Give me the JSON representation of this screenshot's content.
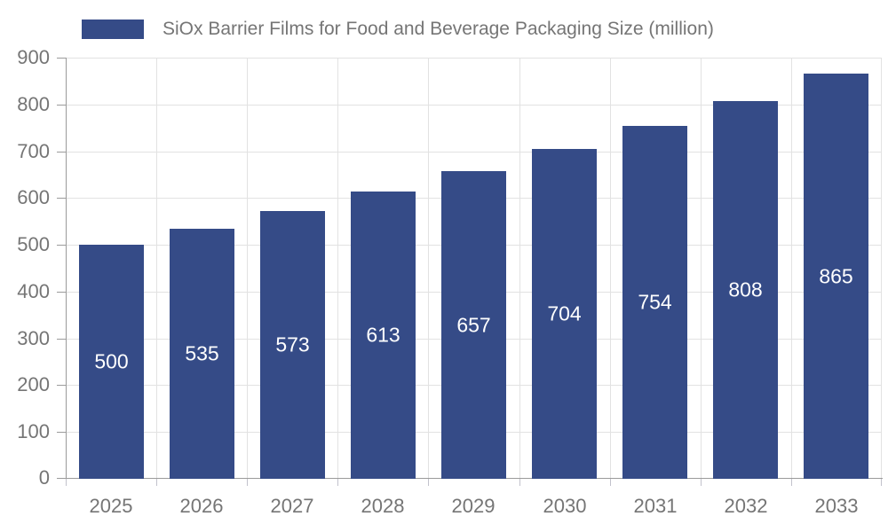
{
  "legend": {
    "label": "SiOx Barrier Films for Food and Beverage Packaging Size (million)"
  },
  "colors": {
    "bar": "#354b87",
    "bar_label": "#ffffff",
    "axis_text": "#757575",
    "grid_line": "#e2e2e2",
    "axis_line": "#9b9b9b",
    "x_tick": "#c2c2cc",
    "background": "#ffffff"
  },
  "chart_data": {
    "type": "bar",
    "title": "SiOx Barrier Films for Food and Beverage Packaging Size (million)",
    "categories": [
      "2025",
      "2026",
      "2027",
      "2028",
      "2029",
      "2030",
      "2031",
      "2032",
      "2033"
    ],
    "values": [
      500,
      535,
      573,
      613,
      657,
      704,
      754,
      808,
      865
    ],
    "xlabel": "",
    "ylabel": "",
    "ylim": [
      0,
      900
    ],
    "yticks": [
      0,
      100,
      200,
      300,
      400,
      500,
      600,
      700,
      800,
      900
    ],
    "grid": true,
    "legend_position": "top-left",
    "value_label_position": "inside-center"
  }
}
